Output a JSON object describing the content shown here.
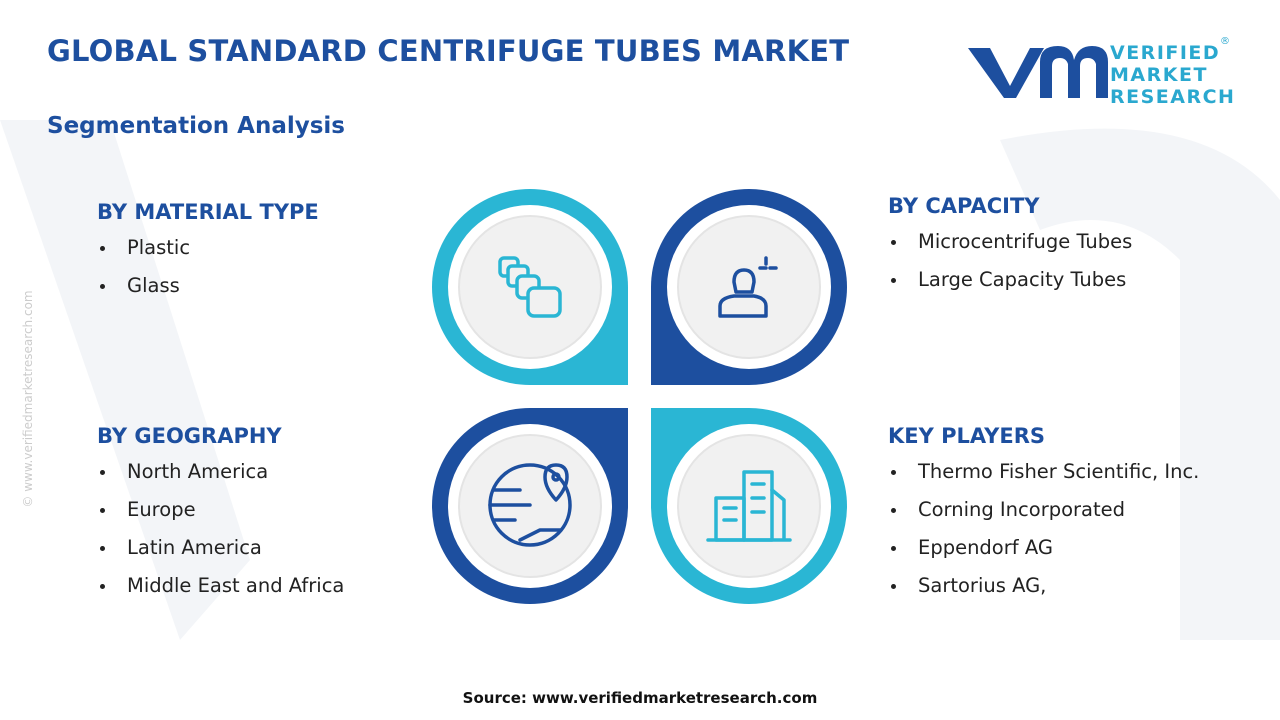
{
  "header": {
    "title": "GLOBAL STANDARD CENTRIFUGE TUBES MARKET",
    "subtitle": "Segmentation Analysis"
  },
  "logo": {
    "lines": [
      "VERIFIED",
      "MARKET",
      "RESEARCH"
    ],
    "mark": "®"
  },
  "watermark": "© www.verifiedmarketresearch.com",
  "segments": [
    {
      "title": "BY MATERIAL TYPE",
      "items": [
        "Plastic",
        "Glass"
      ]
    },
    {
      "title": "BY CAPACITY",
      "items": [
        "Microcentrifuge Tubes",
        "Large Capacity Tubes"
      ]
    },
    {
      "title": "BY GEOGRAPHY",
      "items": [
        "North America",
        "Europe",
        "Latin America",
        "Middle East and Africa"
      ]
    },
    {
      "title": "KEY PLAYERS",
      "items": [
        "Thermo Fisher Scientific, Inc.",
        "Corning Incorporated",
        "Eppendorf AG",
        "Sartorius AG,"
      ]
    }
  ],
  "source": "Source: www.verifiedmarketresearch.com"
}
